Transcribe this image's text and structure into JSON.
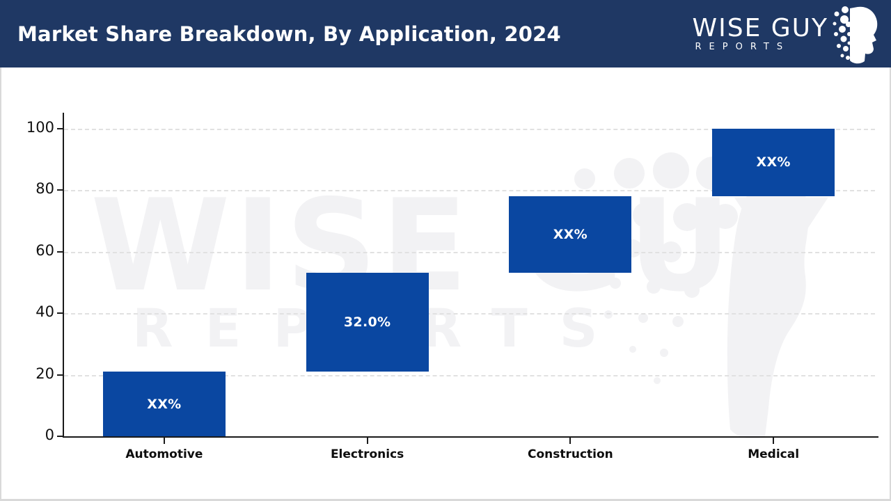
{
  "header": {
    "title": "Market Share Breakdown, By Application, 2024",
    "logo": {
      "line1": "WISE GUY",
      "line2": "REPORTS"
    },
    "bg_color": "#1f3864"
  },
  "watermark": {
    "line1": "WISE GUY",
    "line2": "REPORTS"
  },
  "chart_data": {
    "type": "bar",
    "subtype": "waterfall-floating-bars",
    "title": "Market Share Breakdown, By Application, 2024",
    "categories": [
      "Automotive",
      "Electronics",
      "Construction",
      "Medical"
    ],
    "segments": [
      {
        "category": "Automotive",
        "start": 0,
        "end": 21,
        "label": "XX%"
      },
      {
        "category": "Electronics",
        "start": 21,
        "end": 53,
        "label": "32.0%"
      },
      {
        "category": "Construction",
        "start": 53,
        "end": 78,
        "label": "XX%"
      },
      {
        "category": "Medical",
        "start": 78,
        "end": 100,
        "label": "XX%"
      }
    ],
    "yticks": [
      0,
      20,
      40,
      60,
      80,
      100
    ],
    "ylim": [
      0,
      105
    ],
    "xlabel": "",
    "ylabel": "",
    "grid": "horizontal-dashed",
    "legend": "none",
    "bar_color": "#0a47a1",
    "label_color": "#ffffff"
  }
}
